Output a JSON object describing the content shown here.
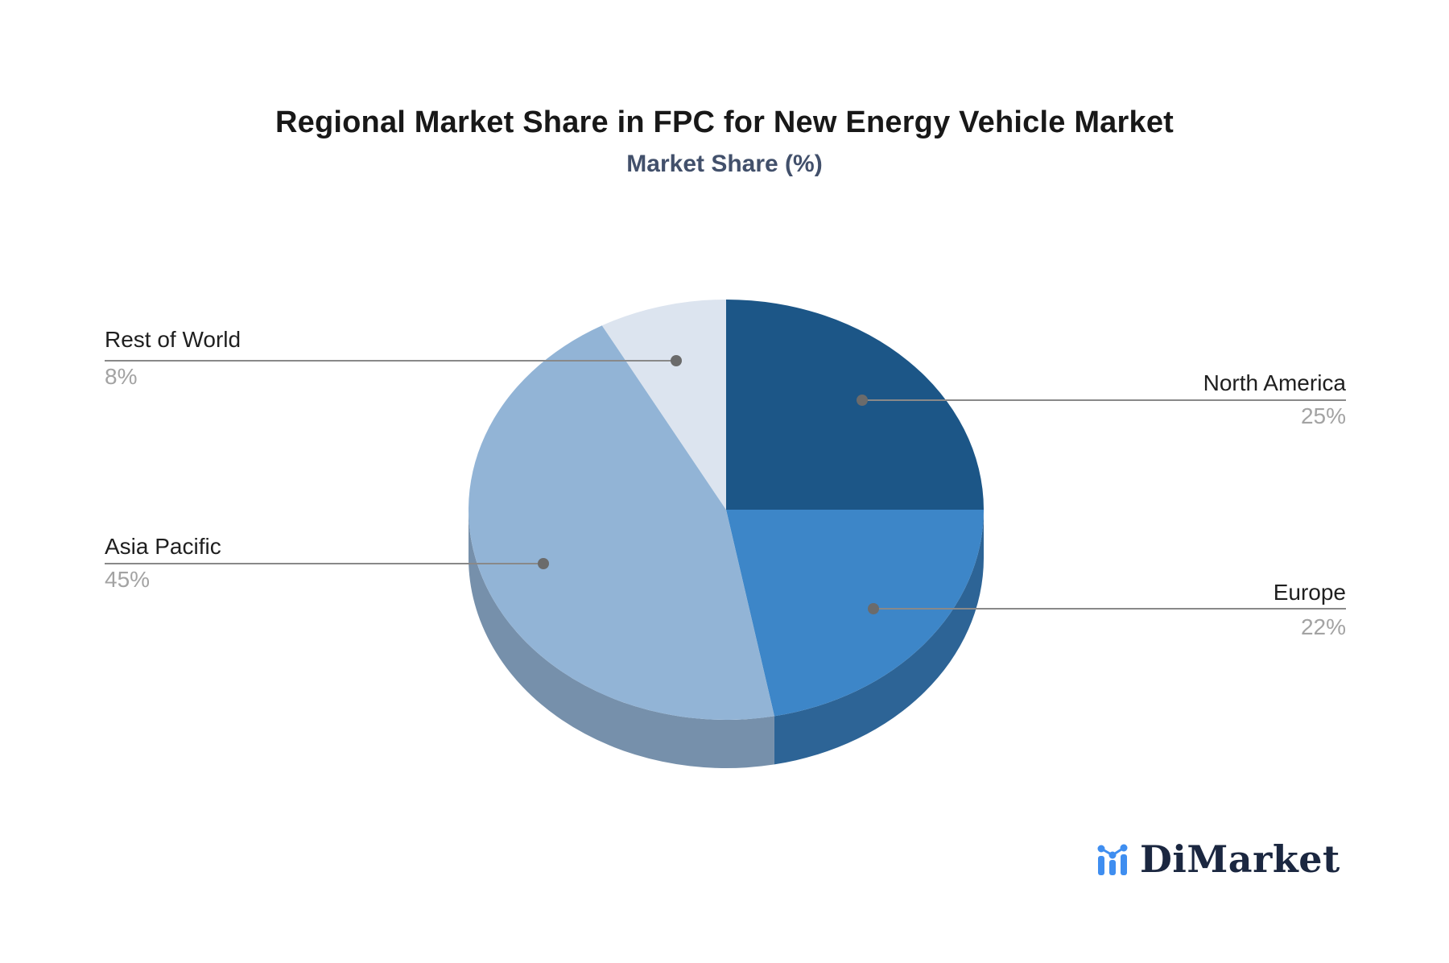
{
  "chart_data": {
    "type": "pie",
    "title": "Regional Market Share in FPC for New Energy Vehicle Market",
    "subtitle": "Market Share (%)",
    "unit": "%",
    "start_angle_deg": 0,
    "direction": "clockwise",
    "effect": "3d-depth",
    "legend_position": "callout-labels",
    "segments": [
      {
        "label": "North America",
        "value": 25,
        "display": "25%",
        "color": "#1c5687",
        "side_color": "#174a75"
      },
      {
        "label": "Europe",
        "value": 22,
        "display": "22%",
        "color": "#3d86c8",
        "side_color": "#2d6496"
      },
      {
        "label": "Asia Pacific",
        "value": 45,
        "display": "45%",
        "color": "#92b4d6",
        "side_color": "#7690ab"
      },
      {
        "label": "Rest of World",
        "value": 8,
        "display": "8%",
        "color": "#dce4ef",
        "side_color": "#b8c4d4"
      }
    ]
  },
  "branding": {
    "logo_text": "DiMarket",
    "logo_icon": "bar-line-chart-icon",
    "logo_icon_color": "#3f8ef0",
    "logo_text_color": "#1b2740"
  }
}
